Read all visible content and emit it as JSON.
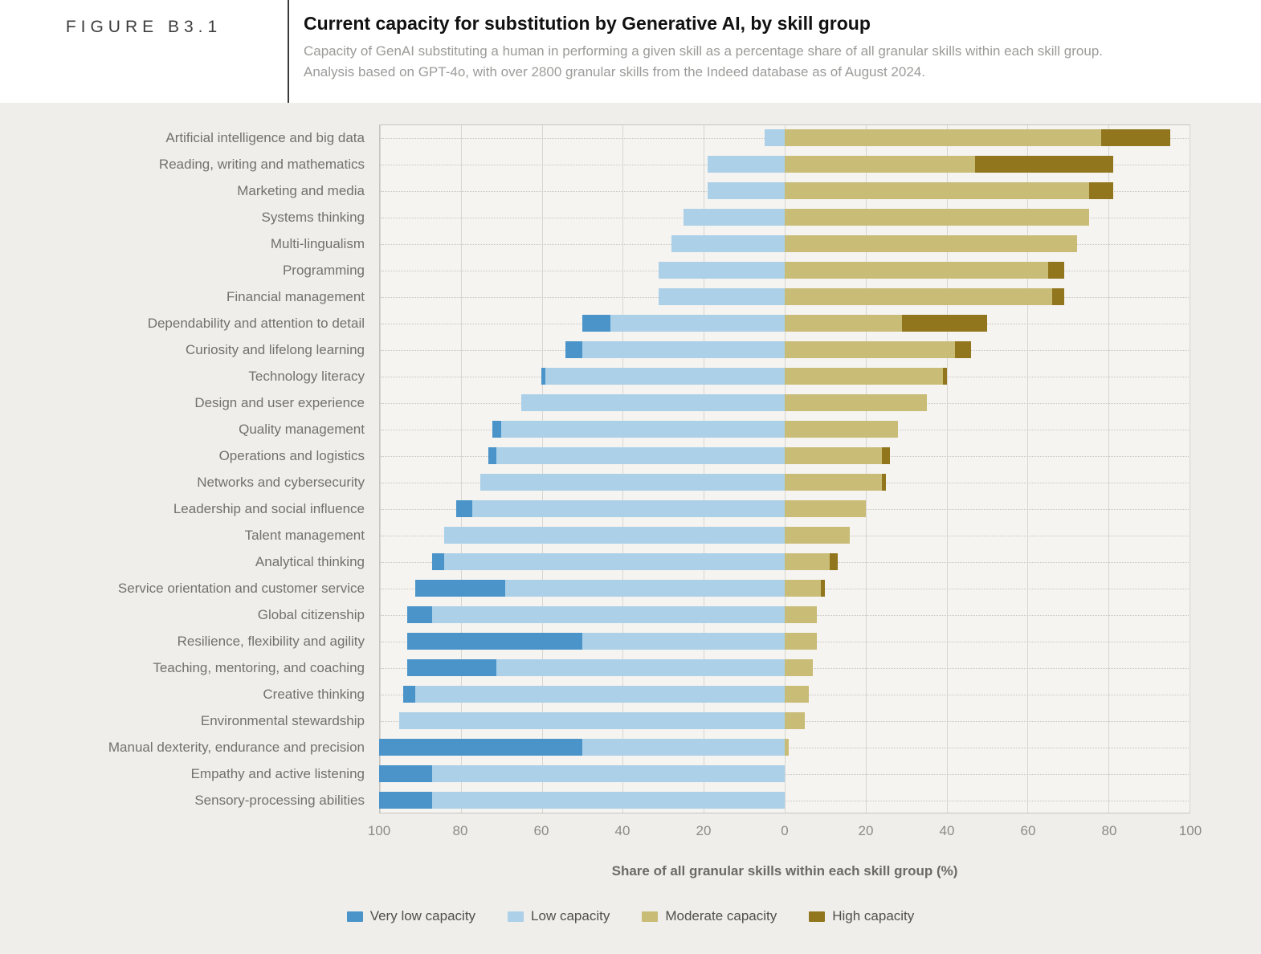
{
  "header": {
    "figure_label": "FIGURE B3.1",
    "title": "Current capacity for substitution by Generative AI, by skill group",
    "subtitle_line1": "Capacity of GenAI substituting a human in performing a given skill as a percentage share of all granular skills within each skill group.",
    "subtitle_line2": "Analysis based on GPT-4o, with over 2800 granular skills from the Indeed database as of August 2024."
  },
  "chart_data": {
    "type": "bar",
    "orientation": "horizontal-diverging",
    "title": "Current capacity for substitution by Generative AI, by skill group",
    "xlabel": "Share of all granular skills within each skill group (%)",
    "axis_ticks": [
      100,
      80,
      60,
      40,
      20,
      0,
      20,
      40,
      60,
      80,
      100
    ],
    "axis_range_each_side": [
      0,
      100
    ],
    "grid": true,
    "legend_position": "bottom",
    "categories": [
      "Artificial intelligence and big data",
      "Reading, writing and mathematics",
      "Marketing and media",
      "Systems thinking",
      "Multi-lingualism",
      "Programming",
      "Financial management",
      "Dependability and attention to detail",
      "Curiosity and lifelong learning",
      "Technology literacy",
      "Design and user experience",
      "Quality management",
      "Operations and logistics",
      "Networks and cybersecurity",
      "Leadership and social influence",
      "Talent management",
      "Analytical thinking",
      "Service orientation and customer service",
      "Global citizenship",
      "Resilience, flexibility and agility",
      "Teaching, mentoring, and coaching",
      "Creative thinking",
      "Environmental stewardship",
      "Manual dexterity, endurance and precision",
      "Empathy and active listening",
      "Sensory-processing abilities"
    ],
    "series": [
      {
        "key": "very_low",
        "name": "Very low capacity",
        "side": "left",
        "color": "#4a94c9",
        "values": [
          0,
          0,
          0,
          0,
          0,
          0,
          0,
          7,
          4,
          1,
          0,
          2,
          2,
          0,
          4,
          0,
          3,
          22,
          6,
          43,
          22,
          3,
          0,
          50,
          13,
          13
        ]
      },
      {
        "key": "low",
        "name": "Low capacity",
        "side": "left",
        "color": "#abd0e8",
        "values": [
          5,
          19,
          19,
          25,
          28,
          31,
          31,
          43,
          50,
          59,
          65,
          70,
          71,
          75,
          77,
          84,
          84,
          69,
          87,
          50,
          71,
          91,
          95,
          50,
          87,
          87
        ]
      },
      {
        "key": "moderate",
        "name": "Moderate capacity",
        "side": "right",
        "color": "#c9bc77",
        "values": [
          78,
          47,
          75,
          75,
          72,
          65,
          66,
          29,
          42,
          39,
          35,
          28,
          24,
          24,
          20,
          16,
          11,
          9,
          8,
          8,
          7,
          6,
          5,
          1,
          0,
          0
        ]
      },
      {
        "key": "high",
        "name": "High capacity",
        "side": "right",
        "color": "#91761e",
        "values": [
          17,
          34,
          6,
          0,
          0,
          4,
          3,
          21,
          4,
          1,
          0,
          0,
          2,
          1,
          0,
          0,
          2,
          1,
          0,
          0,
          0,
          0,
          0,
          0,
          0,
          0
        ]
      }
    ]
  },
  "colors": {
    "panel_background": "#efeeeb",
    "plot_background": "#f5f4f1",
    "gridline": "#d7d6d1",
    "very_low": "#4a94c9",
    "low": "#abd0e8",
    "moderate": "#c9bc77",
    "high": "#91761e"
  }
}
